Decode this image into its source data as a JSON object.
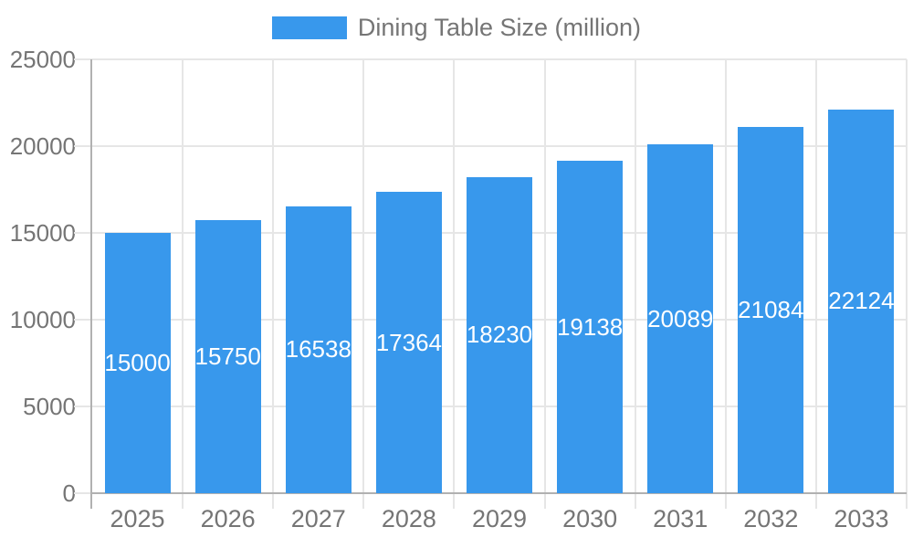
{
  "legend": {
    "label": "Dining Table Size (million)"
  },
  "chart_data": {
    "type": "bar",
    "title": "",
    "categories": [
      "2025",
      "2026",
      "2027",
      "2028",
      "2029",
      "2030",
      "2031",
      "2032",
      "2033"
    ],
    "series": [
      {
        "name": "Dining Table Size (million)",
        "values": [
          15000,
          15750,
          16538,
          17364,
          18230,
          19138,
          20089,
          21084,
          22124
        ]
      }
    ],
    "xlabel": "",
    "ylabel": "",
    "ylim": [
      0,
      25000
    ],
    "y_ticks": [
      0,
      5000,
      10000,
      15000,
      20000,
      25000
    ],
    "grid": true,
    "legend_position": "top",
    "bar_value_labels_shown": true
  },
  "style": {
    "accent": "#3898ec",
    "bar_label_color": "#ffffff",
    "grid_color": "#e6e6e6",
    "axis_color": "#b1b1b1",
    "text_color": "#757575",
    "background": "#ffffff"
  }
}
